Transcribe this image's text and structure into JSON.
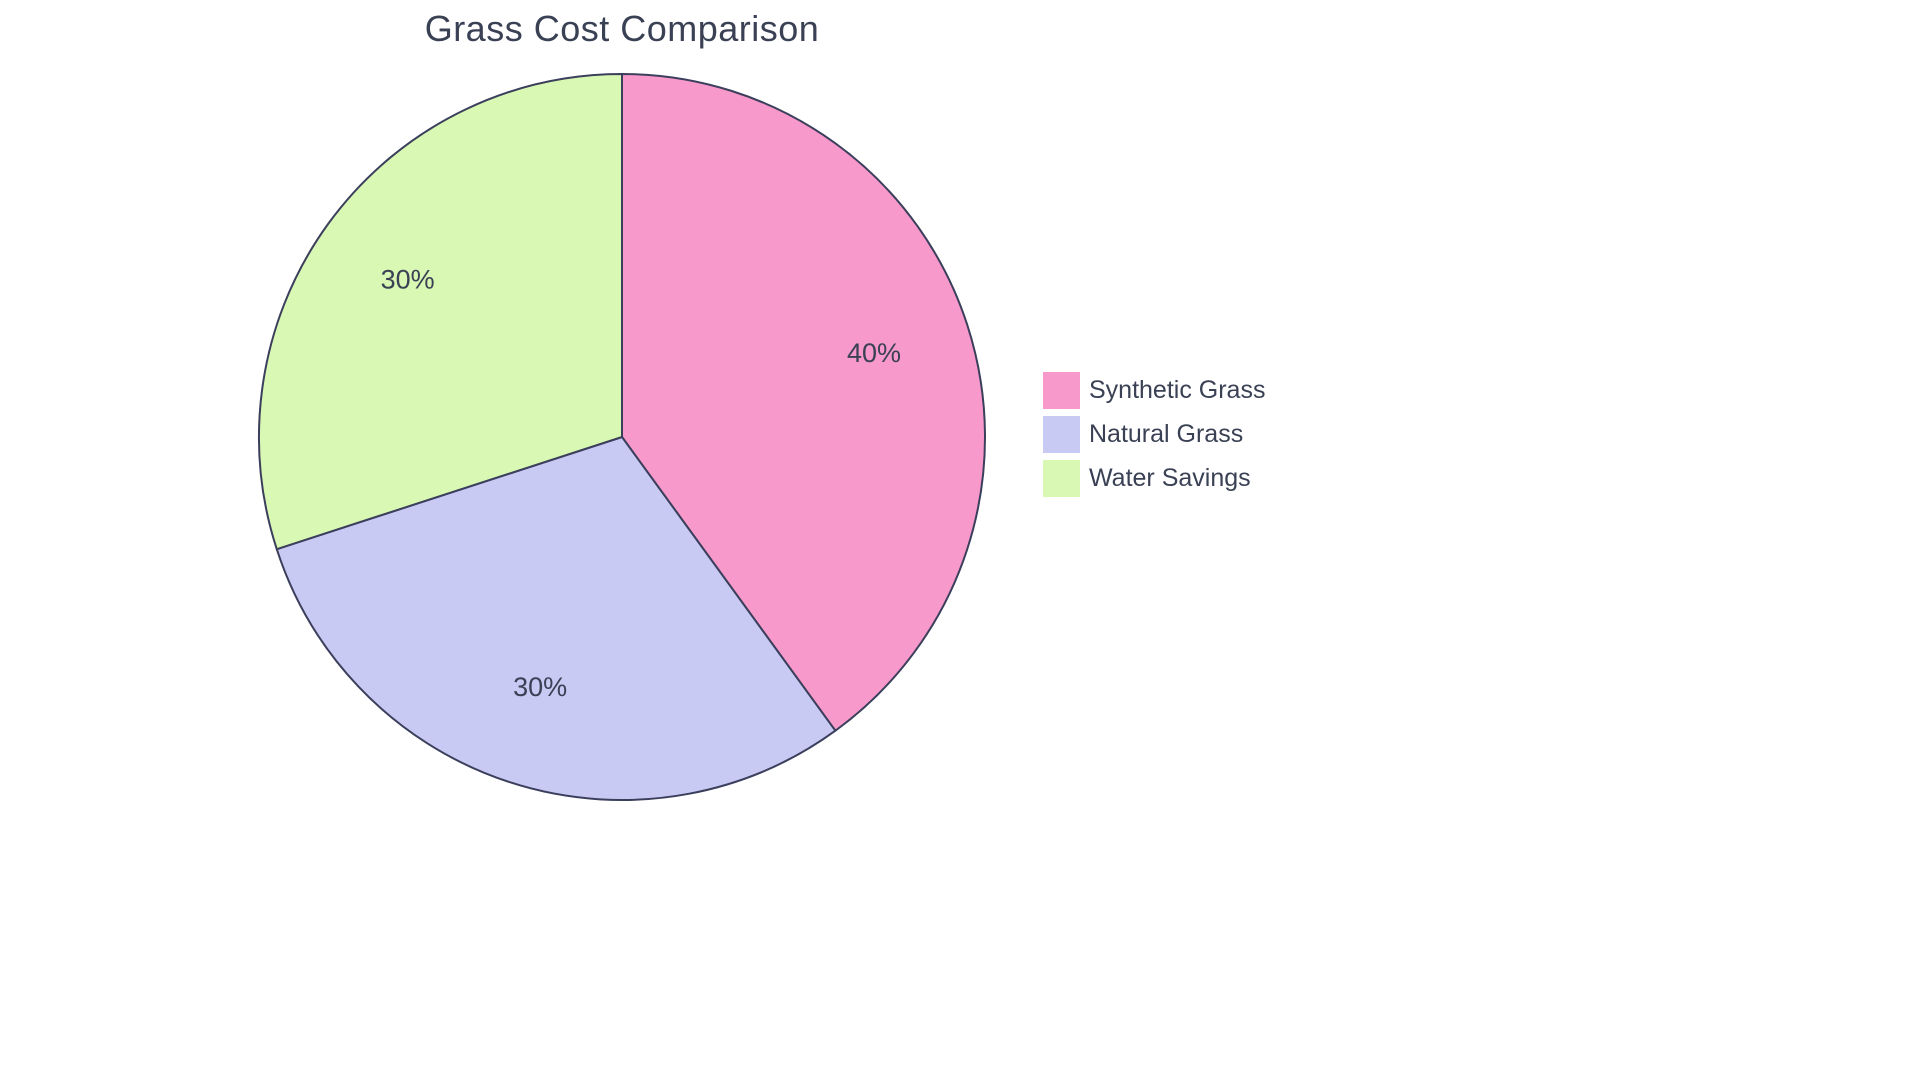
{
  "chart_data": {
    "type": "pie",
    "title": "Grass Cost Comparison",
    "labels": [
      "Synthetic Grass",
      "Natural Grass",
      "Water Savings"
    ],
    "values": [
      40,
      30,
      30
    ],
    "slice_labels": [
      "40%",
      "30%",
      "30%"
    ],
    "colors": [
      "#F899CB",
      "#C8CAF4",
      "#D9F8B4"
    ],
    "stroke_color": "#3B3F5C",
    "text_color": "#3A4154",
    "start_angle_deg": 0,
    "direction": "clockwise",
    "legend_position": "right",
    "background": "#FFFFFF"
  }
}
